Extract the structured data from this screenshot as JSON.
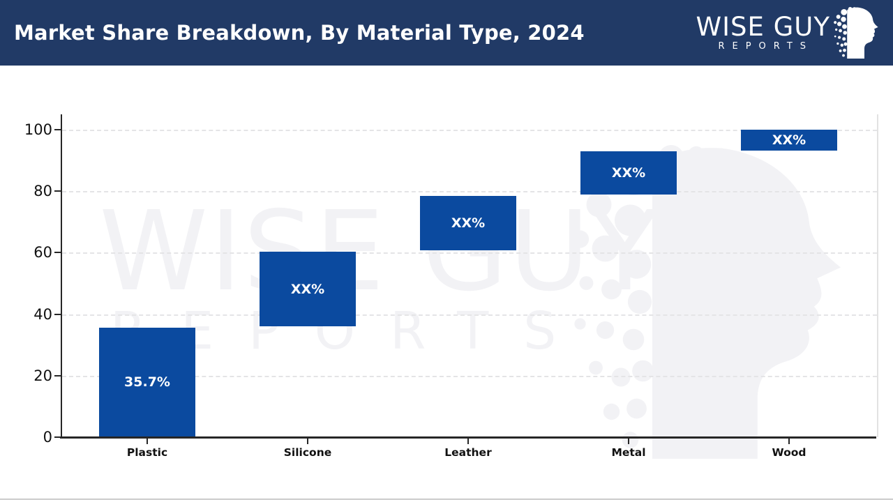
{
  "header": {
    "title": "Market Share Breakdown, By Material Type, 2024",
    "logo": {
      "line1": "WISE GUY",
      "line2": "REPORTS"
    }
  },
  "watermark": {
    "line1": "WISE GUY",
    "line2": "REPORTS"
  },
  "colors": {
    "header_bg": "#213a66",
    "bar": "#0b4a9f",
    "bar_label": "#ffffff",
    "grid": "#e4e4e6",
    "axis": "#262626",
    "watermark": "#f2f2f5"
  },
  "chart_data": {
    "type": "bar",
    "subtype": "waterfall",
    "title": "Market Share Breakdown, By Material Type, 2024",
    "xlabel": "",
    "ylabel": "",
    "categories": [
      "Plastic",
      "Silicone",
      "Leather",
      "Metal",
      "Wood"
    ],
    "segments": [
      {
        "category": "Plastic",
        "start": 0,
        "end": 35.7,
        "label": "35.7%"
      },
      {
        "category": "Silicone",
        "start": 36.0,
        "end": 60.3,
        "label": "XX%"
      },
      {
        "category": "Leather",
        "start": 60.8,
        "end": 78.5,
        "label": "XX%"
      },
      {
        "category": "Metal",
        "start": 79.0,
        "end": 92.9,
        "label": "XX%"
      },
      {
        "category": "Wood",
        "start": 93.2,
        "end": 100,
        "label": "XX%"
      }
    ],
    "yticks": [
      0,
      20,
      40,
      60,
      80,
      100
    ],
    "ylim": [
      0,
      105
    ],
    "grid": "dashed-horizontal",
    "legend": "none"
  }
}
